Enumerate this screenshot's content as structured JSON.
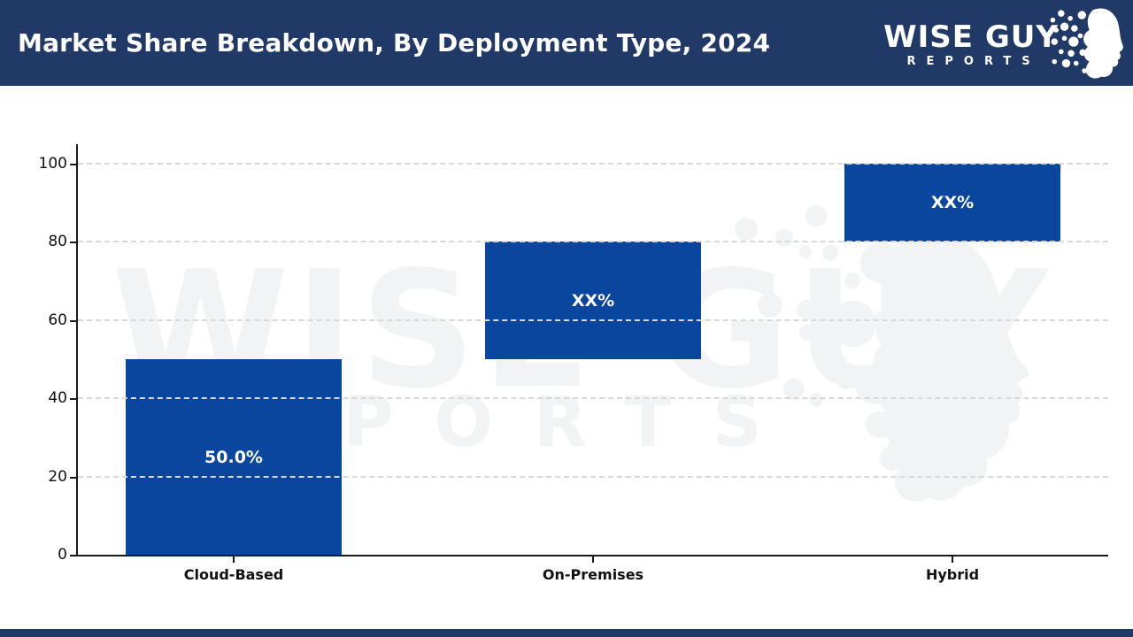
{
  "header": {
    "title": "Market Share Breakdown, By Deployment Type, 2024",
    "logo": {
      "line1": "WISE GUY",
      "line2": "REPORTS"
    }
  },
  "watermark": {
    "line1": "WISE GUY",
    "line2": "REPORTS"
  },
  "colors": {
    "header_bg": "#213966",
    "bar": "#0B469E",
    "bar_label": "#ffffff",
    "grid": "#d8d8d8",
    "axis": "#1a1a1a",
    "watermark": "#f2f3f5"
  },
  "chart_data": {
    "type": "bar",
    "subtype": "waterfall",
    "title": "Market Share Breakdown, By Deployment Type, 2024",
    "categories": [
      "Cloud-Based",
      "On-Premises",
      "Hybrid"
    ],
    "segments": [
      {
        "category": "Cloud-Based",
        "start": 0,
        "end": 50,
        "label": "50.0%"
      },
      {
        "category": "On-Premises",
        "start": 50,
        "end": 80,
        "label": "XX%"
      },
      {
        "category": "Hybrid",
        "start": 80,
        "end": 100,
        "label": "XX%"
      }
    ],
    "ylim": [
      0,
      100
    ],
    "yticks": [
      0,
      20,
      40,
      60,
      80,
      100
    ],
    "xlabel": "",
    "ylabel": "",
    "grid": "horizontal-dashed",
    "legend": "none"
  }
}
